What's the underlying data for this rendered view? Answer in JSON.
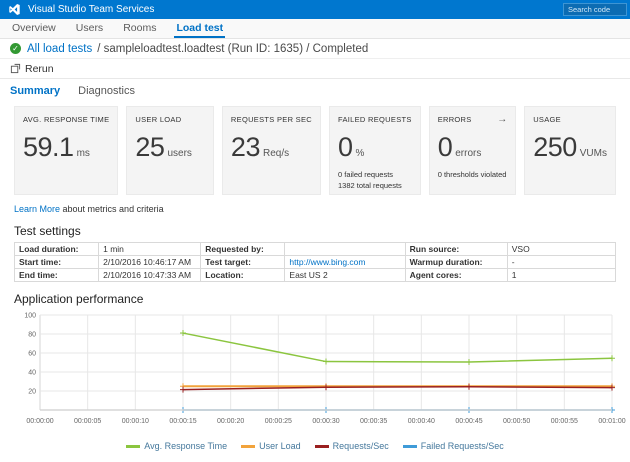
{
  "header": {
    "product": "Visual Studio Team Services",
    "search_placeholder": "Search code"
  },
  "nav": {
    "items": [
      {
        "label": "Overview",
        "active": false
      },
      {
        "label": "Users",
        "active": false
      },
      {
        "label": "Rooms",
        "active": false
      },
      {
        "label": "Load test",
        "active": true
      }
    ]
  },
  "breadcrumb": {
    "status_icon": "check-circle",
    "check_glyph": "✓",
    "link": "All load tests",
    "rest": "/ sampleloadtest.loadtest (Run ID: 1635) / Completed"
  },
  "toolbar": {
    "rerun_label": "Rerun"
  },
  "tabs": [
    {
      "label": "Summary",
      "active": true
    },
    {
      "label": "Diagnostics",
      "active": false
    }
  ],
  "cards": [
    {
      "title": "AVG. RESPONSE TIME",
      "value": "59.1",
      "unit": "ms"
    },
    {
      "title": "USER LOAD",
      "value": "25",
      "unit": "users"
    },
    {
      "title": "REQUESTS PER SEC",
      "value": "23",
      "unit": "Req/s"
    },
    {
      "title": "FAILED REQUESTS",
      "value": "0",
      "unit": "%",
      "sub": [
        "0 failed requests",
        "1382 total requests"
      ]
    },
    {
      "title": "ERRORS",
      "value": "0",
      "unit": "errors",
      "sub": [
        "0 thresholds violated"
      ],
      "arrow": "→"
    },
    {
      "title": "USAGE",
      "value": "250",
      "unit": "VUMs"
    }
  ],
  "learn_more": {
    "link": "Learn More",
    "rest": " about metrics and criteria"
  },
  "test_settings": {
    "heading": "Test settings",
    "rows": [
      [
        {
          "label": "Load duration:",
          "value": "1 min"
        },
        {
          "label": "Requested by:",
          "value": ""
        },
        {
          "label": "Run source:",
          "value": "VSO"
        }
      ],
      [
        {
          "label": "Start time:",
          "value": "2/10/2016 10:46:17 AM"
        },
        {
          "label": "Test target:",
          "value": "http://www.bing.com",
          "link": true
        },
        {
          "label": "Warmup duration:",
          "value": "-"
        }
      ],
      [
        {
          "label": "End time:",
          "value": "2/10/2016 10:47:33 AM"
        },
        {
          "label": "Location:",
          "value": "East US 2"
        },
        {
          "label": "Agent cores:",
          "value": "1"
        }
      ]
    ]
  },
  "app_performance": {
    "heading": "Application performance"
  },
  "chart_data": {
    "type": "line",
    "title": "Application performance",
    "xlabel": "",
    "ylabel": "",
    "x_range_seconds": [
      0,
      60
    ],
    "x_tick_interval_seconds": 5,
    "x_ticks": [
      "00:00:00",
      "00:00:05",
      "00:00:10",
      "00:00:15",
      "00:00:20",
      "00:00:25",
      "00:00:30",
      "00:00:35",
      "00:00:40",
      "00:00:45",
      "00:00:50",
      "00:00:55",
      "00:01:00"
    ],
    "ylim": [
      0,
      100
    ],
    "y_ticks": [
      20,
      40,
      60,
      80,
      100
    ],
    "grid": true,
    "legend_position": "bottom",
    "colors": {
      "grid": "#e7e7e7",
      "axis": "#d5d5d5",
      "tick_text": "#666666"
    },
    "series": [
      {
        "name": "Avg. Response Time",
        "color": "#8bc53f",
        "x": [
          15,
          30,
          45,
          60
        ],
        "values": [
          81,
          51,
          50.5,
          54.5
        ]
      },
      {
        "name": "User Load",
        "color": "#f2a33c",
        "x": [
          15,
          30,
          45,
          60
        ],
        "values": [
          25,
          25,
          25,
          25
        ]
      },
      {
        "name": "Requests/Sec",
        "color": "#9a2020",
        "x": [
          15,
          30,
          45,
          60
        ],
        "values": [
          21.5,
          24,
          24.5,
          23.5
        ]
      },
      {
        "name": "Failed Requests/Sec",
        "color": "#3f9bd8",
        "x": [
          15,
          30,
          45,
          60
        ],
        "values": [
          0,
          0,
          0,
          0
        ]
      }
    ]
  }
}
